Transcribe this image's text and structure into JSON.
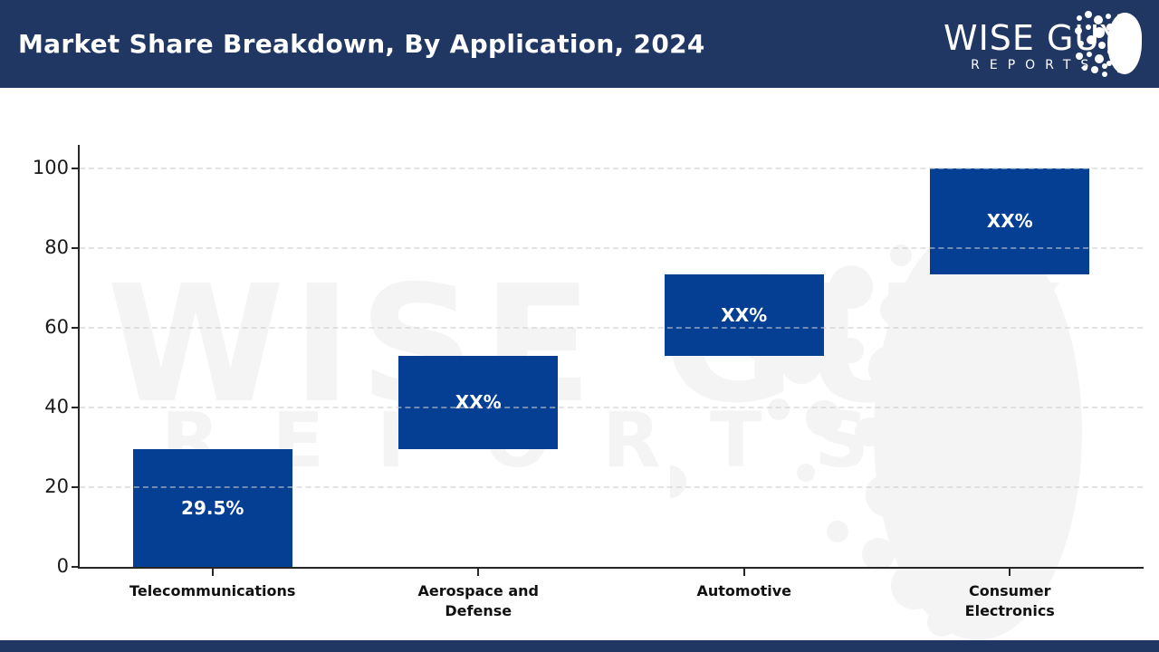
{
  "header": {
    "title": "Market Share Breakdown, By Application, 2024",
    "bg_color": "#203763",
    "logo": {
      "line1": "WISE GUY",
      "line2": "REPORTS"
    }
  },
  "watermark": {
    "line1": "WISE GUY",
    "line2": "REPORTS"
  },
  "chart_data": {
    "type": "bar",
    "subtype": "waterfall",
    "title": "Market Share Breakdown, By Application, 2024",
    "categories": [
      "Telecommunications",
      "Aerospace and\nDefense",
      "Automotive",
      "Consumer\nElectronics"
    ],
    "bars": [
      {
        "category": "Telecommunications",
        "start": 0,
        "end": 29.5,
        "value": 29.5,
        "label": "29.5%"
      },
      {
        "category": "Aerospace and Defense",
        "start": 29.5,
        "end": 53,
        "value": 23.5,
        "label": "XX%"
      },
      {
        "category": "Automotive",
        "start": 53,
        "end": 73.5,
        "value": 20.5,
        "label": "XX%"
      },
      {
        "category": "Consumer Electronics",
        "start": 73.5,
        "end": 100,
        "value": 26.5,
        "label": "XX%"
      }
    ],
    "ylim": [
      0,
      100
    ],
    "yticks": [
      0,
      20,
      40,
      60,
      80,
      100
    ],
    "xlabel": "",
    "ylabel": "",
    "grid": "dashed-horizontal",
    "legend": "none",
    "bar_color": "#043f94",
    "bar_label_color": "#ffffff",
    "footer_color": "#203763"
  }
}
